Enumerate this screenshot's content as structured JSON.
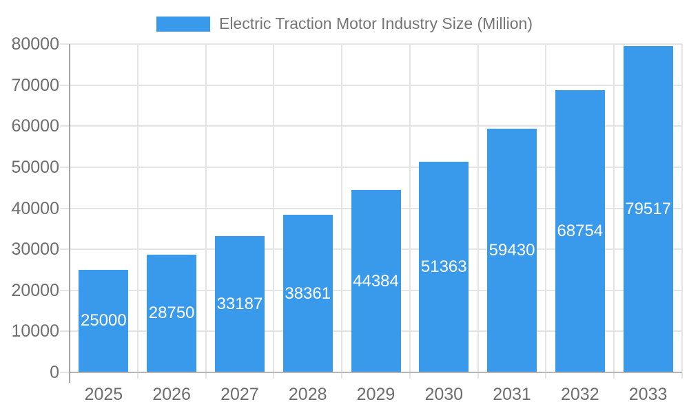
{
  "colors": {
    "bar": "#399aec",
    "grid": "#e4e4e4",
    "y_axis_line": "#a6a6a6",
    "baseline": "#b5b5b5",
    "axis_text": "#6e6e6e",
    "legend_text": "#757575",
    "value_text": "#ffffff",
    "background": "#ffffff"
  },
  "chart_data": {
    "type": "bar",
    "title": "Electric Traction Motor Industry Size (Million)",
    "legend": {
      "position": "top",
      "label": "Electric Traction Motor Industry Size (Million)"
    },
    "categories": [
      "2025",
      "2026",
      "2027",
      "2028",
      "2029",
      "2030",
      "2031",
      "2032",
      "2033"
    ],
    "values": [
      25000,
      28750,
      33187,
      38361,
      44384,
      51363,
      59430,
      68754,
      79517
    ],
    "value_labels": [
      "25000",
      "28750",
      "33187",
      "38361",
      "44384",
      "51363",
      "59430",
      "68754",
      "79517"
    ],
    "xlabel": "",
    "ylabel": "",
    "ylim": [
      0,
      80000
    ],
    "ytick_step": 10000,
    "yticks": [
      0,
      10000,
      20000,
      30000,
      40000,
      50000,
      60000,
      70000,
      80000
    ],
    "grid": "horizontal lines at each y tick, vertical lines at category boundaries, ticks outside axes",
    "value_label_position": "centered inside bar, white text"
  }
}
